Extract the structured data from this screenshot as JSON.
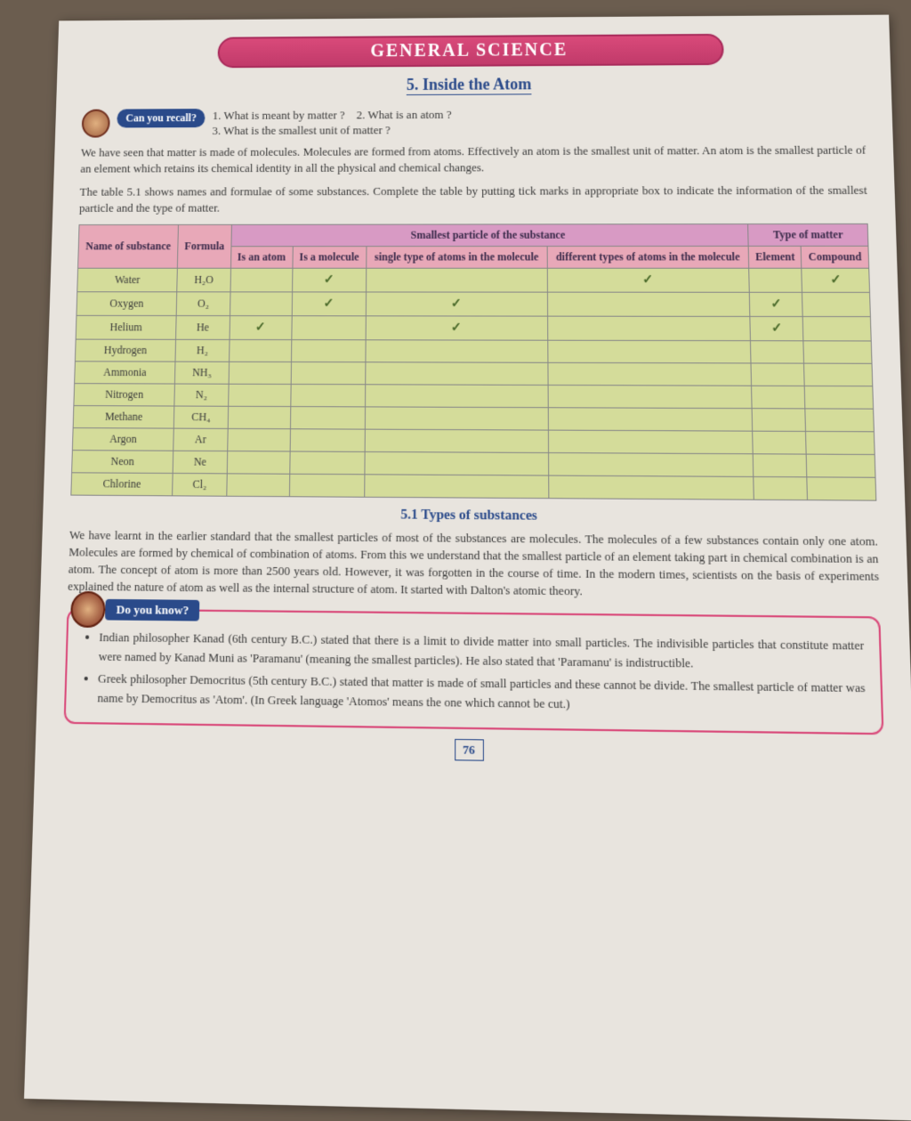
{
  "banner": "GENERAL SCIENCE",
  "chapter_title": "5. Inside the Atom",
  "recall": {
    "badge": "Can you recall?",
    "q1": "1. What is meant by matter ?",
    "q2": "2. What is an atom ?",
    "q3": "3. What is the smallest unit of matter ?"
  },
  "intro_para": "We have seen that matter is made of molecules. Molecules are formed from atoms. Effectively an atom is the smallest unit of matter. An atom is the smallest particle of an element which retains its chemical identity in all the physical and chemical changes.",
  "table_intro": "The table 5.1 shows names and formulae of some substances. Complete the table by putting tick marks in appropriate box to indicate the information of the smallest particle and the type of matter.",
  "table": {
    "header_top": {
      "smallest": "Smallest particle of the substance",
      "type": "Type of matter"
    },
    "columns": [
      "Name of substance",
      "Formula",
      "Is an atom",
      "Is a molecule",
      "single type of atoms in the molecule",
      "different types of atoms in the molecule",
      "Element",
      "Compound"
    ],
    "rows": [
      {
        "name": "Water",
        "formula": "H₂O",
        "ticks": [
          "",
          "✓",
          "",
          "✓",
          "",
          "✓"
        ]
      },
      {
        "name": "Oxygen",
        "formula": "O₂",
        "ticks": [
          "",
          "✓",
          "✓",
          "",
          "✓",
          ""
        ]
      },
      {
        "name": "Helium",
        "formula": "He",
        "ticks": [
          "✓",
          "",
          "✓",
          "",
          "✓",
          ""
        ]
      },
      {
        "name": "Hydrogen",
        "formula": "H₂",
        "ticks": [
          "",
          "",
          "",
          "",
          "",
          ""
        ]
      },
      {
        "name": "Ammonia",
        "formula": "NH₃",
        "ticks": [
          "",
          "",
          "",
          "",
          "",
          ""
        ]
      },
      {
        "name": "Nitrogen",
        "formula": "N₂",
        "ticks": [
          "",
          "",
          "",
          "",
          "",
          ""
        ]
      },
      {
        "name": "Methane",
        "formula": "CH₄",
        "ticks": [
          "",
          "",
          "",
          "",
          "",
          ""
        ]
      },
      {
        "name": "Argon",
        "formula": "Ar",
        "ticks": [
          "",
          "",
          "",
          "",
          "",
          ""
        ]
      },
      {
        "name": "Neon",
        "formula": "Ne",
        "ticks": [
          "",
          "",
          "",
          "",
          "",
          ""
        ]
      },
      {
        "name": "Chlorine",
        "formula": "Cl₂",
        "ticks": [
          "",
          "",
          "",
          "",
          "",
          ""
        ]
      }
    ]
  },
  "section_title": "5.1 Types of substances",
  "body_para": "We have learnt in the earlier standard that the smallest particles of most of the substances are molecules. The molecules of a few substances contain only one atom. Molecules are formed by chemical of combination of atoms. From this we understand that the smallest particle of an element taking part in chemical combination is an atom. The concept of atom is more than 2500 years old. However, it was forgotten in the course of time. In the modern times, scientists on the basis of experiments explained the nature of atom as well as the internal structure of atom. It started with Dalton's atomic theory.",
  "dyk": {
    "label": "Do you know?",
    "items": [
      "Indian philosopher Kanad (6th century B.C.) stated that there is a limit to divide matter into small particles. The indivisible particles that constitute matter were named by Kanad Muni as 'Paramanu' (meaning the smallest particles). He also stated that 'Paramanu' is indistructible.",
      "Greek philosopher Democritus (5th century B.C.) stated that matter is made of small particles and these cannot be divide. The smallest particle of matter was name by Democritus as 'Atom'. (In Greek language 'Atomos' means the one which cannot be cut.)"
    ]
  },
  "page_number": "76",
  "colors": {
    "banner_bg": "#d94a7a",
    "title_blue": "#2a4a8a",
    "pink_header": "#d89ac4",
    "salmon_header": "#e8a8b8",
    "green_cell": "#d4dc9a",
    "page_bg": "#e8e4de"
  }
}
